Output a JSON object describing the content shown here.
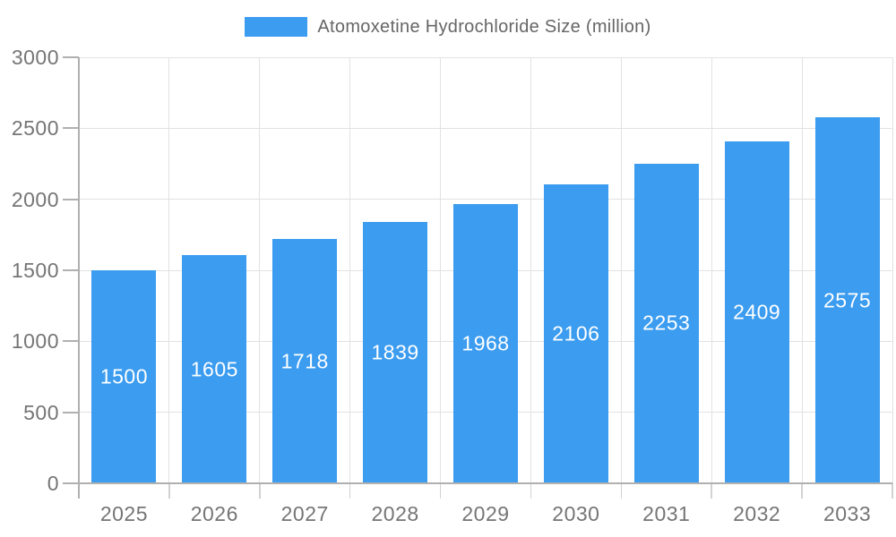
{
  "chart_data": {
    "type": "bar",
    "title": "",
    "legend": {
      "label": "Atomoxetine Hydrochloride Size (million)",
      "position": "top"
    },
    "categories": [
      "2025",
      "2026",
      "2027",
      "2028",
      "2029",
      "2030",
      "2031",
      "2032",
      "2033"
    ],
    "values": [
      1500,
      1605,
      1718,
      1839,
      1968,
      2106,
      2253,
      2409,
      2575
    ],
    "xlabel": "",
    "ylabel": "",
    "ylim": [
      0,
      3000
    ],
    "y_ticks": [
      0,
      500,
      1000,
      1500,
      2000,
      2500,
      3000
    ],
    "grid": true,
    "value_labels_inside_bars": true,
    "colors": {
      "bar": "#3b9cf0",
      "axis_line": "#b0b0b0",
      "gridline": "#e2e2e2",
      "axis_text": "#757575",
      "legend_text": "#666666",
      "value_text": "#ffffff"
    }
  }
}
